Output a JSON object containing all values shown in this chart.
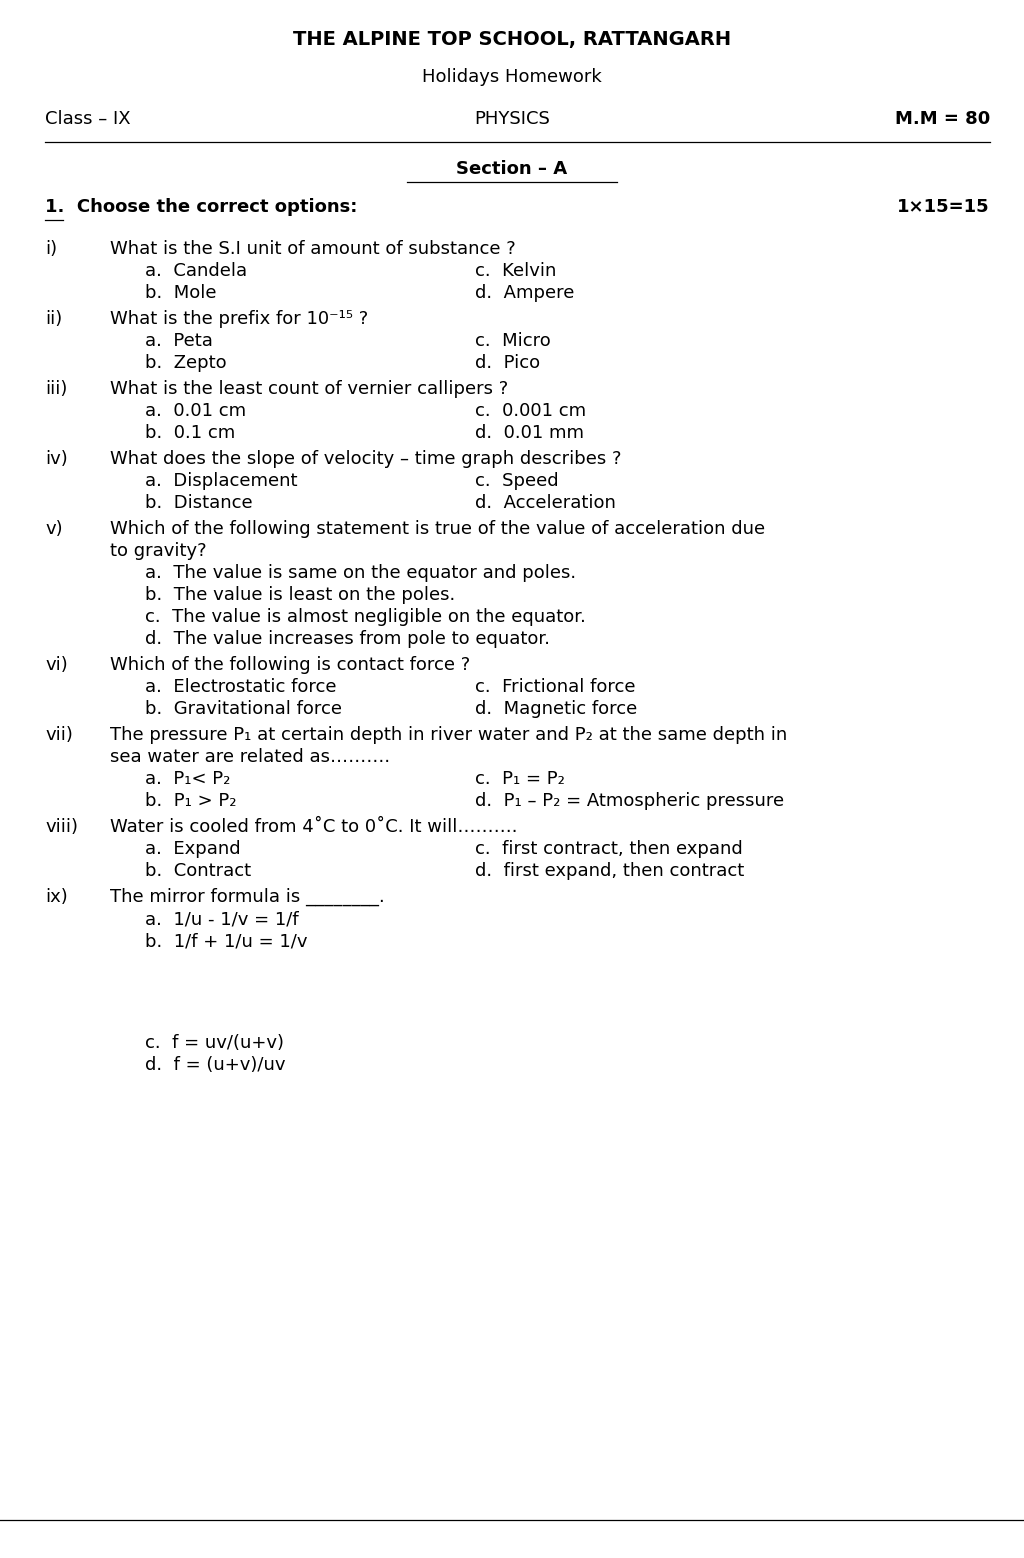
{
  "bg_color": "#ffffff",
  "title1": "THE ALPINE TOP SCHOOL, RATTANGARH",
  "title2": "Holidays Homework",
  "class_label": "Class – IX",
  "subject": "PHYSICS",
  "marks": "M.M = 80",
  "section": "Section – A",
  "q_header_left": "1.  Choose the correct options:",
  "q_header_right": "1×15=15",
  "questions": [
    {
      "num": "i)",
      "text": "What is the S.I unit of amount of substance ?",
      "options_left": [
        "a.  Candela",
        "b.  Mole"
      ],
      "options_right": [
        "c.  Kelvin",
        "d.  Ampere"
      ]
    },
    {
      "num": "ii)",
      "text": "What is the prefix for 10⁻¹⁵ ?",
      "options_left": [
        "a.  Peta",
        "b.  Zepto"
      ],
      "options_right": [
        "c.  Micro",
        "d.  Pico"
      ]
    },
    {
      "num": "iii)",
      "text": "What is the least count of vernier callipers ?",
      "options_left": [
        "a.  0.01 cm",
        "b.  0.1 cm"
      ],
      "options_right": [
        "c.  0.001 cm",
        "d.  0.01 mm"
      ]
    },
    {
      "num": "iv)",
      "text": "What does the slope of velocity – time graph describes ?",
      "options_left": [
        "a.  Displacement",
        "b.  Distance"
      ],
      "options_right": [
        "c.  Speed",
        "d.  Acceleration"
      ]
    },
    {
      "num": "v)",
      "text_lines": [
        "Which of the following statement is true of the value of acceleration due",
        "to gravity?"
      ],
      "options_left": [
        "a.  The value is same on the equator and poles.",
        "b.  The value is least on the poles.",
        "c.  The value is almost negligible on the equator.",
        "d.  The value increases from pole to equator."
      ],
      "options_right": []
    },
    {
      "num": "vi)",
      "text": "Which of the following is contact force ?",
      "options_left": [
        "a.  Electrostatic force",
        "b.  Gravitational force"
      ],
      "options_right": [
        "c.  Frictional force",
        "d.  Magnetic force"
      ]
    },
    {
      "num": "vii)",
      "text_lines": [
        "The pressure P₁ at certain depth in river water and P₂ at the same depth in",
        "sea water are related as………."
      ],
      "options_left": [
        "a.  P₁< P₂",
        "b.  P₁ > P₂"
      ],
      "options_right": [
        "c.  P₁ = P₂",
        "d.  P₁ – P₂ = Atmospheric pressure"
      ]
    },
    {
      "num": "viii)",
      "text": "Water is cooled from 4˚C to 0˚C. It will……….",
      "options_left": [
        "a.  Expand",
        "b.  Contract"
      ],
      "options_right": [
        "c.  first contract, then expand",
        "d.  first expand, then contract"
      ]
    },
    {
      "num": "ix)",
      "text": "The mirror formula is ________.",
      "options_left": [
        "a.  1/u - 1/v = 1/f",
        "b.  1/f + 1/u = 1/v"
      ],
      "options_right": [],
      "extra_options": [
        "c.  f = uv/(u+v)",
        "d.  f = (u+v)/uv"
      ]
    }
  ]
}
